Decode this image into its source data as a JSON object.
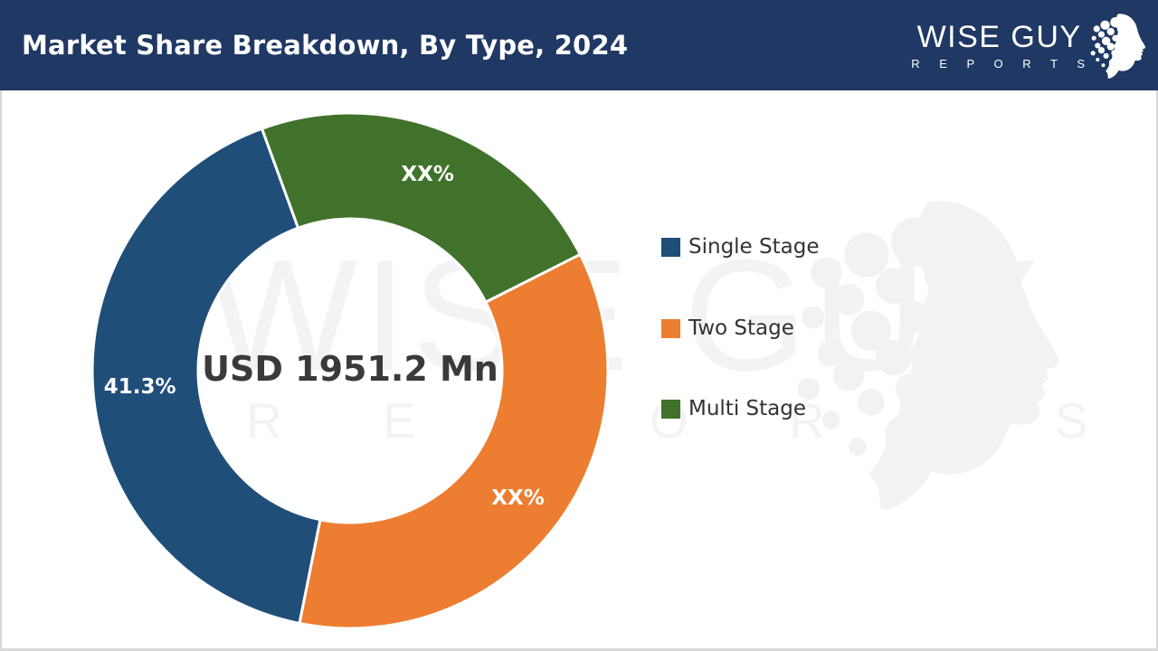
{
  "header": {
    "title": "Market Share Breakdown, By Type, 2024",
    "bg_color": "#1F3864",
    "logo": {
      "primary": "WISE GUY",
      "secondary": "R E P O R T S"
    }
  },
  "watermark": {
    "primary": "WISE GUY",
    "secondary": "R E P O R T S"
  },
  "chart_data": {
    "type": "pie",
    "variant": "donut",
    "title": "Market Share Breakdown, By Type, 2024",
    "center_label": "USD 1951.2 Mn",
    "start_angle_deg": 110,
    "direction": "counterclockwise",
    "legend_position": "right",
    "segments": [
      {
        "label": "Single Stage",
        "display_value": "41.3%",
        "percent": 41.3,
        "color": "#1F4E79"
      },
      {
        "label": "Two Stage",
        "display_value": "XX%",
        "percent": 35.6,
        "color": "#ED7D31"
      },
      {
        "label": "Multi Stage",
        "display_value": "XX%",
        "percent": 23.1,
        "color": "#41722C"
      }
    ]
  }
}
